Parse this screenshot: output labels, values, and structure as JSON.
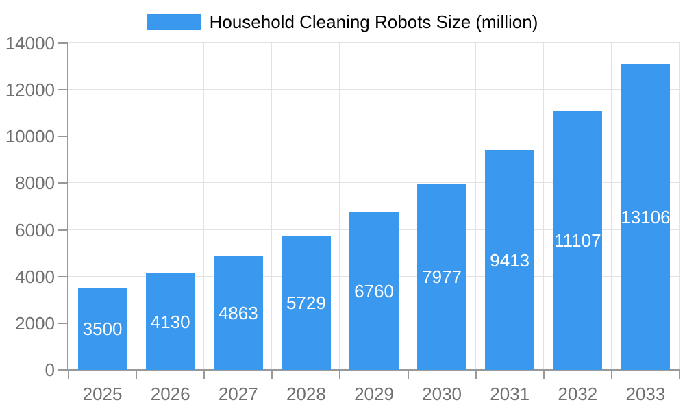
{
  "legend": {
    "items": [
      {
        "label": "Household Cleaning Robots Size (million)",
        "color": "#3A99EE"
      }
    ],
    "position": "top"
  },
  "chart_data": {
    "type": "bar",
    "title": "",
    "categories": [
      "2025",
      "2026",
      "2027",
      "2028",
      "2029",
      "2030",
      "2031",
      "2032",
      "2033"
    ],
    "series": [
      {
        "name": "Household Cleaning Robots Size (million)",
        "values": [
          3500,
          4130,
          4863,
          5729,
          6760,
          7977,
          9413,
          11107,
          13106
        ]
      }
    ],
    "xlabel": "",
    "ylabel": "",
    "ylim": [
      0,
      14000
    ],
    "yticks": [
      0,
      2000,
      4000,
      6000,
      8000,
      10000,
      12000,
      14000
    ],
    "grid": true,
    "bar_labels_inside": true,
    "legend_position": "top"
  },
  "colors": {
    "bar": "#3A99EE",
    "grid_line": "#E2E2E2",
    "axis_line": "#999999",
    "text": "#707070",
    "bar_label": "#FFFFFF",
    "background": "#FFFFFF"
  }
}
